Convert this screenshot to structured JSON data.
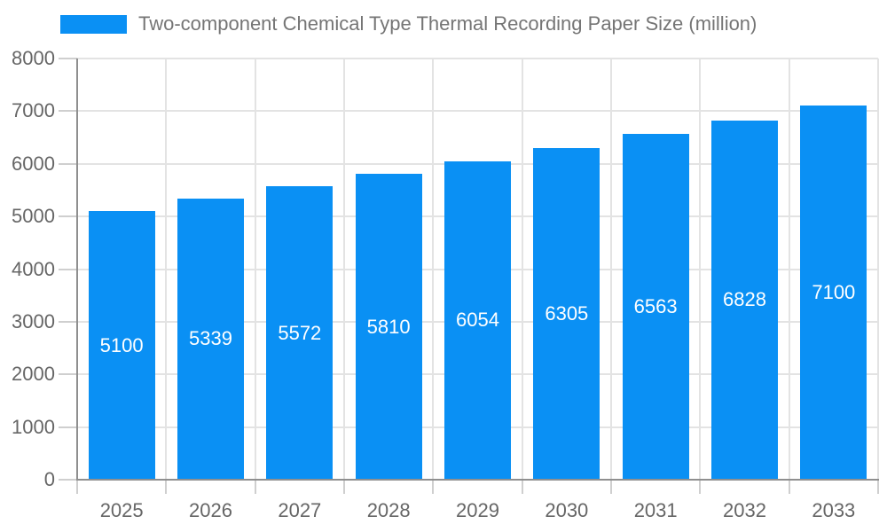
{
  "chart_data": {
    "type": "bar",
    "title": "Two-component Chemical Type Thermal Recording Paper Size (million)",
    "categories": [
      "2025",
      "2026",
      "2027",
      "2028",
      "2029",
      "2030",
      "2031",
      "2032",
      "2033"
    ],
    "values": [
      5100,
      5339,
      5572,
      5810,
      6054,
      6305,
      6563,
      6828,
      7100
    ],
    "series": [
      {
        "name": "Two-component Chemical Type Thermal Recording Paper Size (million)",
        "values": [
          5100,
          5339,
          5572,
          5810,
          6054,
          6305,
          6563,
          6828,
          7100
        ]
      }
    ],
    "xlabel": "",
    "ylabel": "",
    "ylim": [
      0,
      8000
    ],
    "yticks": [
      0,
      1000,
      2000,
      3000,
      4000,
      5000,
      6000,
      7000,
      8000
    ],
    "grid": true,
    "legend_position": "top-left",
    "bar_value_labels_inside": true
  },
  "colors": {
    "bar": "#0a90f4",
    "bar_label": "#ffffff",
    "axis_line": "#8f8f8f",
    "gridline": "#e3e3e3",
    "tick": "#cfcfcf",
    "tick_label": "#666666",
    "title_text": "#757575",
    "background": "#ffffff"
  }
}
